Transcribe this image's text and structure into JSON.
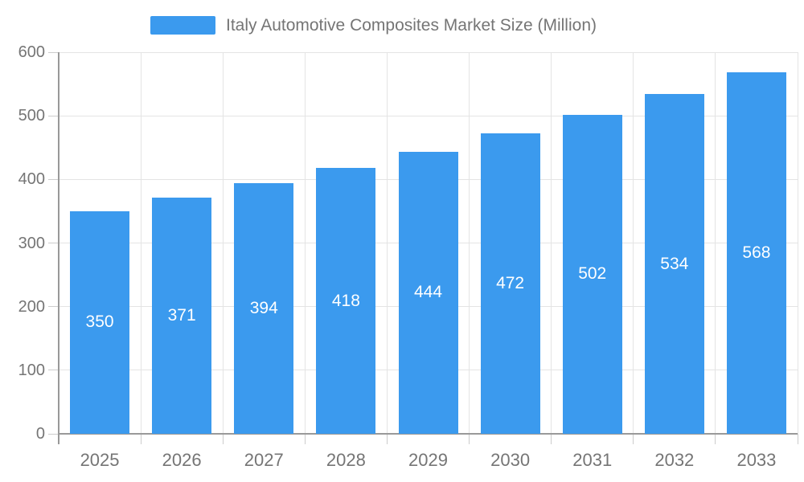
{
  "legend": {
    "label": "Italy Automotive Composites Market Size (Million)"
  },
  "colors": {
    "bar": "#3B9AEE",
    "axis_line": "#999999",
    "gridline": "#E4E4E4",
    "tick": "#CCCCCC",
    "axis_text": "#757575",
    "bar_label_text": "#FFFFFF",
    "background": "#FFFFFF"
  },
  "chart_data": {
    "type": "bar",
    "title": "Italy Automotive Composites Market Size (Million)",
    "series_name": "Italy Automotive Composites Market Size (Million)",
    "categories": [
      "2025",
      "2026",
      "2027",
      "2028",
      "2029",
      "2030",
      "2031",
      "2032",
      "2033"
    ],
    "values": [
      350,
      371,
      394,
      418,
      444,
      472,
      502,
      534,
      568
    ],
    "xlabel": "",
    "ylabel": "",
    "ylim": [
      0,
      600
    ],
    "yticks": [
      0,
      100,
      200,
      300,
      400,
      500,
      600
    ],
    "grid": true,
    "legend_position": "top",
    "bar_label_position": "inside-center"
  }
}
